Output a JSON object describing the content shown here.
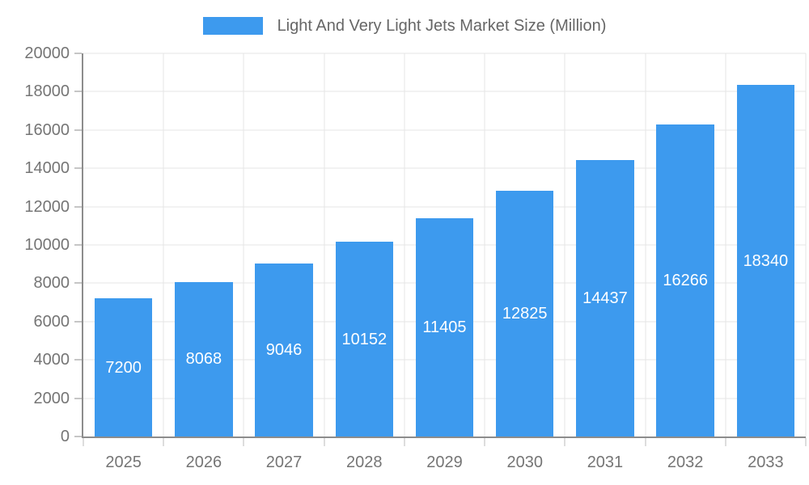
{
  "legend": {
    "label": "Light And Very Light Jets Market Size (Million)"
  },
  "chart_data": {
    "type": "bar",
    "title": "Light And Very Light Jets Market Size (Million)",
    "categories": [
      "2025",
      "2026",
      "2027",
      "2028",
      "2029",
      "2030",
      "2031",
      "2032",
      "2033"
    ],
    "values": [
      7200,
      8068,
      9046,
      10152,
      11405,
      12825,
      14437,
      16266,
      18340
    ],
    "xlabel": "",
    "ylabel": "",
    "ylim": [
      0,
      20000
    ],
    "ytick_step": 2000,
    "yticks": [
      0,
      2000,
      4000,
      6000,
      8000,
      10000,
      12000,
      14000,
      16000,
      18000,
      20000
    ],
    "grid": true,
    "value_labels": "centered-inside-bars",
    "legend_position": "top-center",
    "colors": {
      "bar": "#3D9AEE",
      "axis_line": "#8C8C8C",
      "gridline": "#E6E6E6",
      "tick": "#BBBBBB",
      "axis_label": "#757575",
      "legend_text": "#666666",
      "value_label": "#FFFFFF",
      "background": "#FFFFFF"
    }
  }
}
